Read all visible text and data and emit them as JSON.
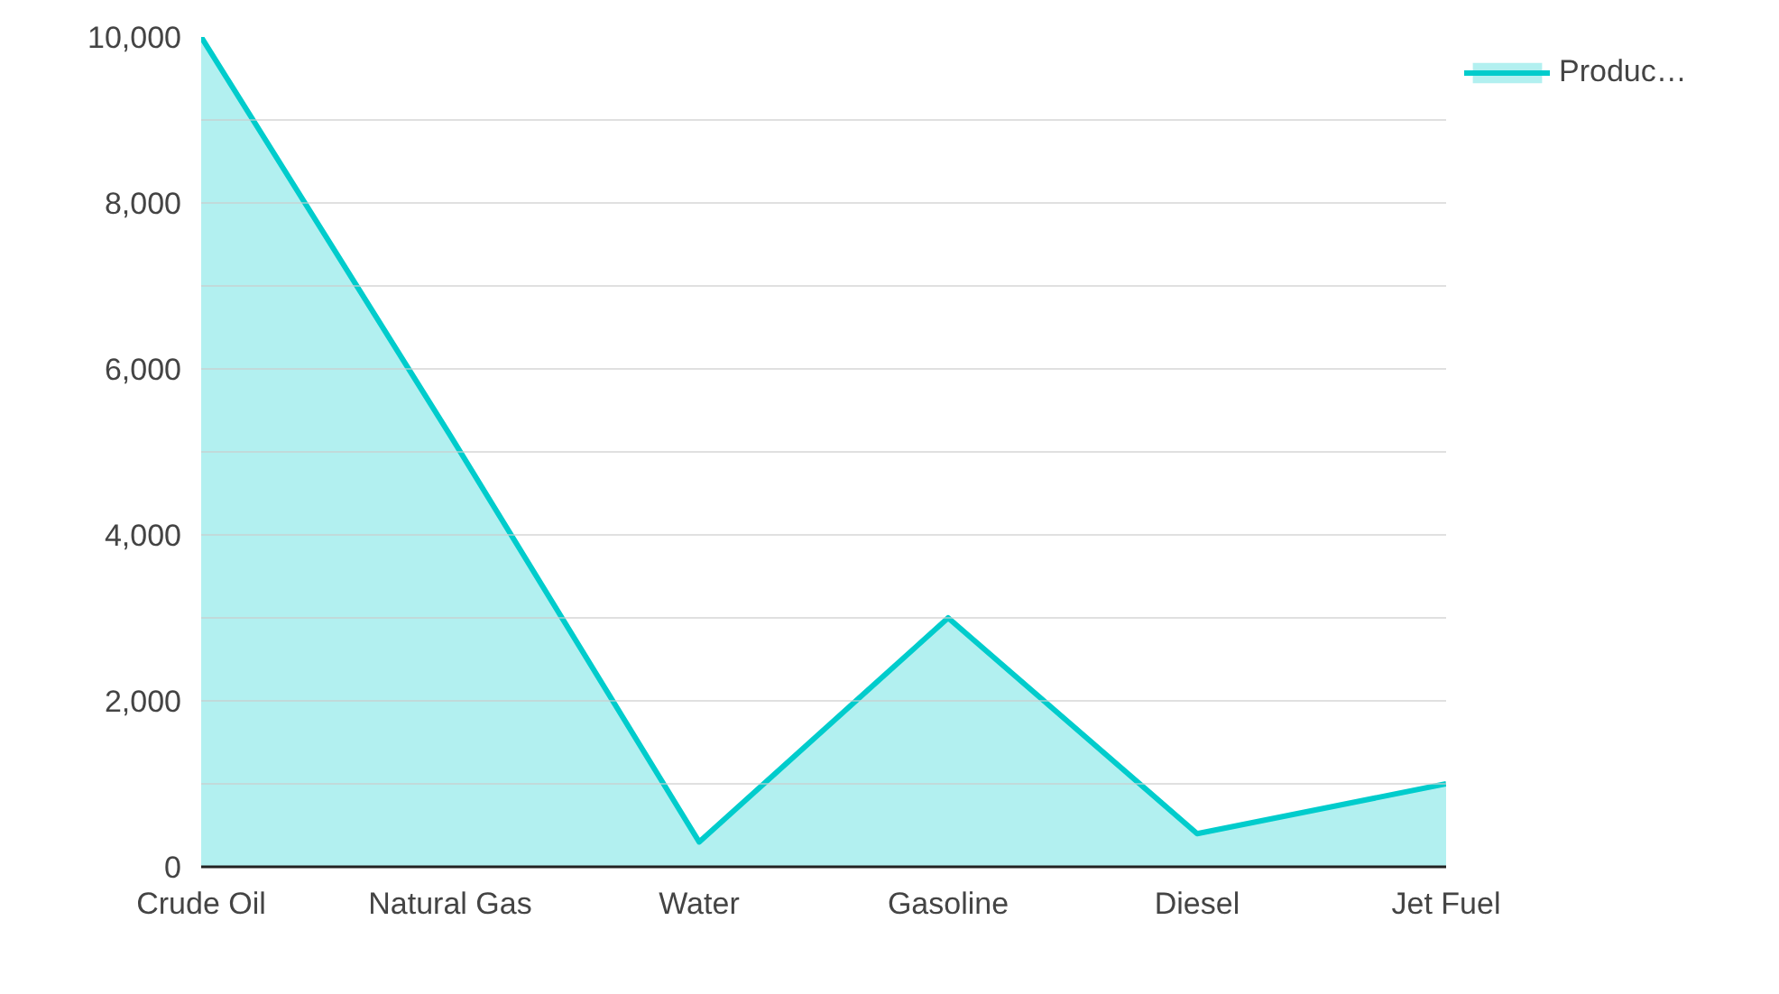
{
  "chart_data": {
    "type": "area",
    "categories": [
      "Crude Oil",
      "Natural Gas",
      "Water",
      "Gasoline",
      "Diesel",
      "Jet Fuel"
    ],
    "series": [
      {
        "name": "Produc…",
        "color": "#00cccc",
        "values": [
          10000,
          5200,
          300,
          3000,
          400,
          1000
        ]
      }
    ],
    "ylim": [
      0,
      10000
    ],
    "yticks": [
      0,
      {
        "value": 1000,
        "label": null
      },
      {
        "value": 2000,
        "label": "2,000"
      },
      {
        "value": 3000,
        "label": null
      },
      {
        "value": 4000,
        "label": "4,000"
      },
      {
        "value": 5000,
        "label": null
      },
      {
        "value": 6000,
        "label": "6,000"
      },
      {
        "value": 7000,
        "label": null
      },
      {
        "value": 8000,
        "label": "8,000"
      },
      {
        "value": 9000,
        "label": null
      },
      {
        "value": 10000,
        "label": "10,000"
      }
    ],
    "grid": "y",
    "legend": "top right"
  }
}
